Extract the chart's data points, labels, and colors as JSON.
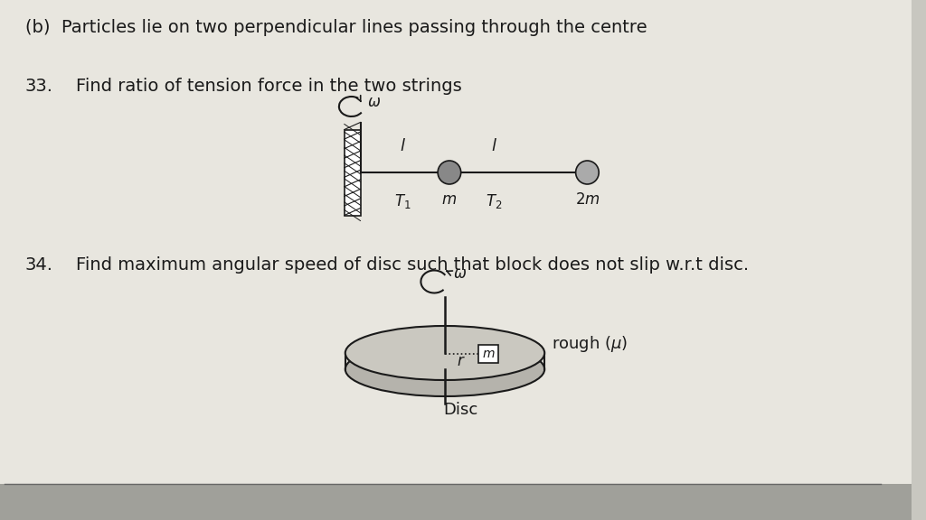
{
  "bg_color": "#c8c7c0",
  "paper_color": "#e8e6df",
  "text_color": "#1a1a1a",
  "title_b": "(b)  Particles lie on two perpendicular lines passing through the centre",
  "q33_label": "33.",
  "q33_text": "Find ratio of tension force in the two strings",
  "q34_label": "34.",
  "q34_text": "Find maximum angular speed of disc such that block does not slip w.r.t disc.",
  "font_size": 14,
  "diagram_font": 13
}
